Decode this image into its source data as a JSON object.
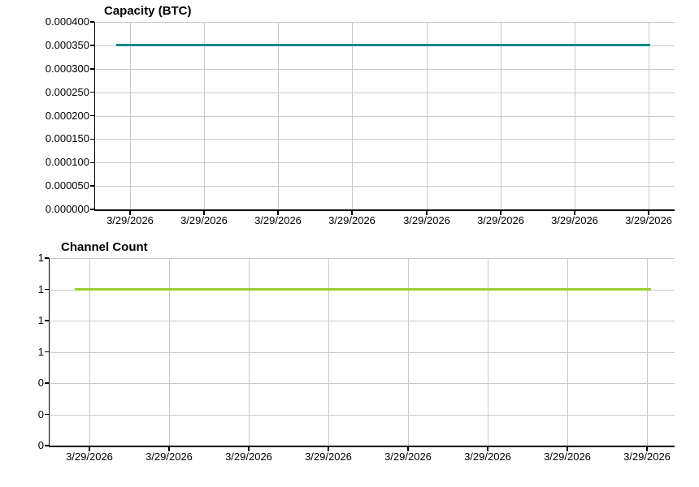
{
  "colors": {
    "background": "#FFFFFF",
    "grid": "#C9C9C9",
    "axis": "#000000",
    "text": "#000000",
    "capacity_line": "#008B8B",
    "channel_count_line": "#9ACD32"
  },
  "chart_data": [
    {
      "type": "line",
      "title": "Capacity (BTC)",
      "x": [
        "3/29/2026",
        "3/29/2026",
        "3/29/2026",
        "3/29/2026",
        "3/29/2026",
        "3/29/2026",
        "3/29/2026",
        "3/29/2026"
      ],
      "series": [
        {
          "name": "Capacity (BTC)",
          "color": "#008B8B",
          "values": [
            0.00035,
            0.00035,
            0.00035,
            0.00035,
            0.00035,
            0.00035,
            0.00035,
            0.00035
          ]
        }
      ],
      "ylim": [
        0,
        0.0004
      ],
      "y_tick_labels": [
        "0.000400",
        "0.000350",
        "0.000300",
        "0.000250",
        "0.000200",
        "0.000150",
        "0.000100",
        "0.000050",
        "0.000000"
      ],
      "xlabel": "",
      "ylabel": "",
      "grid": true,
      "legend": "none"
    },
    {
      "type": "line",
      "title": "Channel Count",
      "x": [
        "3/29/2026",
        "3/29/2026",
        "3/29/2026",
        "3/29/2026",
        "3/29/2026",
        "3/29/2026",
        "3/29/2026",
        "3/29/2026"
      ],
      "series": [
        {
          "name": "Channel Count",
          "color": "#9ACD32",
          "values": [
            1,
            1,
            1,
            1,
            1,
            1,
            1,
            1
          ]
        }
      ],
      "ylim": [
        0,
        1.2
      ],
      "y_tick_labels": [
        "1",
        "1",
        "1",
        "1",
        "0",
        "0",
        "0"
      ],
      "xlabel": "",
      "ylabel": "",
      "grid": true,
      "legend": "none"
    }
  ]
}
